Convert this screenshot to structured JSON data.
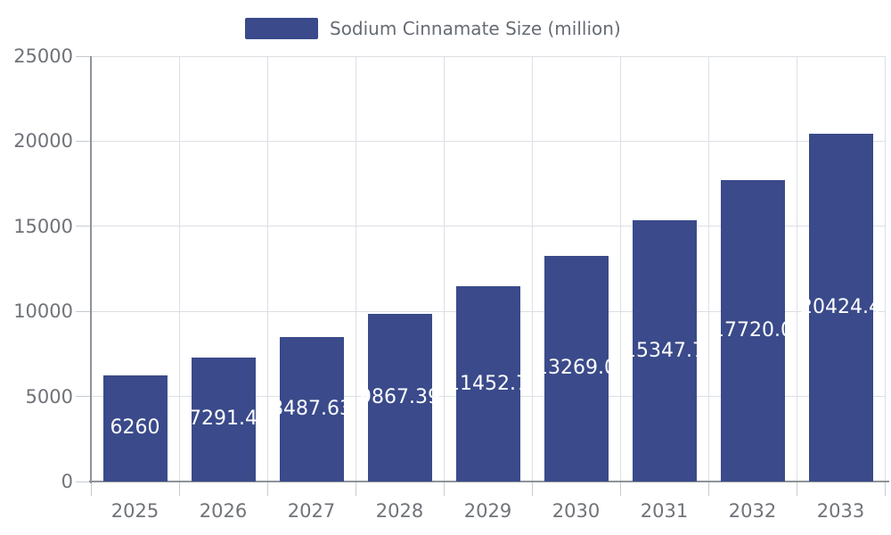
{
  "legend": {
    "label": "Sodium Cinnamate Size (million)"
  },
  "colors": {
    "bar": "#3A4A8A",
    "bar_label": "#FFFFFF",
    "axis_text": "#707379",
    "legend_text": "#666C74",
    "axis_line": "#8E9399",
    "grid_line": "#DCDFE5",
    "tick_line": "#C6CAD0",
    "background": "#FFFFFF"
  },
  "chart_data": {
    "type": "bar",
    "title": "Sodium Cinnamate Size (million)",
    "categories": [
      "2025",
      "2026",
      "2027",
      "2028",
      "2029",
      "2030",
      "2031",
      "2032",
      "2033"
    ],
    "values": [
      6260,
      7291.4,
      8487.63,
      9867.39,
      11452.7,
      13269.0,
      15347.7,
      17720.0,
      20424.4
    ],
    "bar_labels": [
      "6260",
      "7291.4",
      "8487.63",
      "9867.39",
      "11452.7",
      "13269.0",
      "15347.7",
      "17720.0",
      "20424.4"
    ],
    "xlabel": "",
    "ylabel": "",
    "ylim": [
      0,
      25000
    ],
    "y_ticks": [
      0,
      5000,
      10000,
      15000,
      20000,
      25000
    ],
    "y_tick_labels": [
      "0",
      "5000",
      "10000",
      "15000",
      "20000",
      "25000"
    ],
    "grid": true,
    "legend_position": "top-center",
    "bar_label_position": "center"
  }
}
